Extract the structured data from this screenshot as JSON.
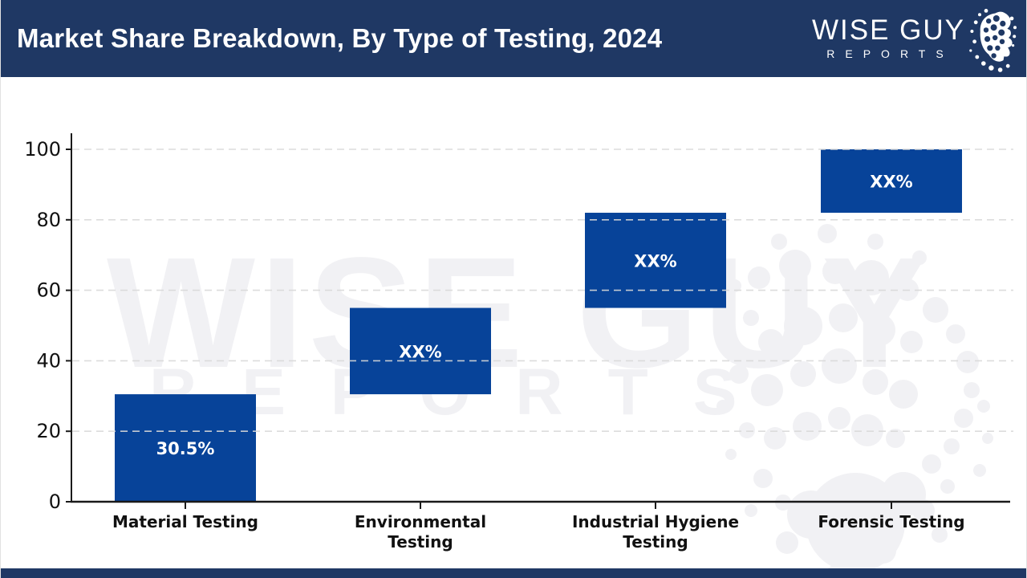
{
  "header": {
    "title": "Market Share Breakdown, By Type of Testing, 2024",
    "logo": {
      "line1": "WISE GUY",
      "line2": "REPORTS"
    }
  },
  "watermark": {
    "line1": "WISE GUY",
    "line2": "REPORTS"
  },
  "chart_data": {
    "type": "bar",
    "subtype": "floating-waterfall",
    "title": "Market Share Breakdown, By Type of Testing, 2024",
    "categories": [
      "Material Testing",
      "Environmental Testing",
      "Industrial Hygiene Testing",
      "Forensic Testing"
    ],
    "category_lines": [
      [
        "Material Testing"
      ],
      [
        "Environmental",
        "Testing"
      ],
      [
        "Industrial Hygiene",
        "Testing"
      ],
      [
        "Forensic Testing"
      ]
    ],
    "series": [
      {
        "name": "Market Share",
        "segments": [
          {
            "category": "Material Testing",
            "start": 0,
            "end": 30.5,
            "label": "30.5%"
          },
          {
            "category": "Environmental Testing",
            "start": 30.5,
            "end": 55,
            "label": "XX%"
          },
          {
            "category": "Industrial Hygiene Testing",
            "start": 55,
            "end": 82,
            "label": "XX%"
          },
          {
            "category": "Forensic Testing",
            "start": 82,
            "end": 100,
            "label": "XX%"
          }
        ]
      }
    ],
    "xlabel": "",
    "ylabel": "",
    "ylim": [
      0,
      100
    ],
    "yticks": [
      0,
      20,
      40,
      60,
      80,
      100
    ],
    "grid": "horizontal-dashed",
    "legend": "none"
  },
  "colors": {
    "header_bg": "#1F3864",
    "header_text": "#FFFFFF",
    "bar": "#074399",
    "bar_label": "#FFFFFF",
    "grid": "#D9D9D9",
    "axis": "#1A1A1A",
    "tick_label": "#111111",
    "watermark": "#F1F1F4",
    "footer_bg": "#1F3864"
  }
}
